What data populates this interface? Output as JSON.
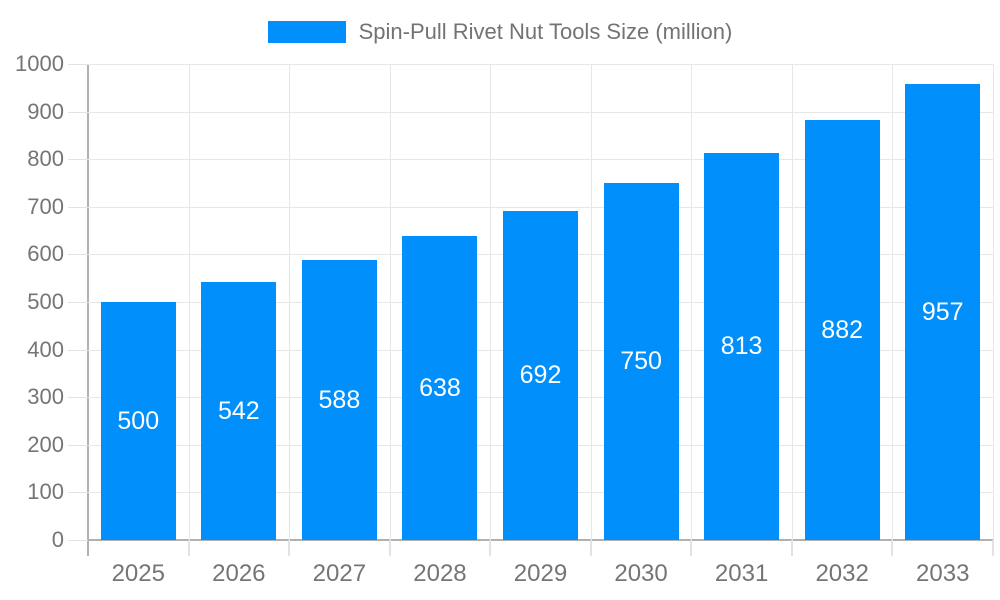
{
  "legend": {
    "label": "Spin-Pull Rivet Nut Tools Size (million)",
    "swatch_color": "#008FFB"
  },
  "chart_data": {
    "type": "bar",
    "title": "Spin-Pull Rivet Nut Tools Size (million)",
    "categories": [
      "2025",
      "2026",
      "2027",
      "2028",
      "2029",
      "2030",
      "2031",
      "2032",
      "2033"
    ],
    "series": [
      {
        "name": "Spin-Pull Rivet Nut Tools Size (million)",
        "values": [
          500,
          542,
          588,
          638,
          692,
          750,
          813,
          882,
          957
        ]
      }
    ],
    "values": [
      500,
      542,
      588,
      638,
      692,
      750,
      813,
      882,
      957
    ],
    "bar_color": "#008FFB",
    "bar_label_color": "#ffffff",
    "axis_text_color": "#757575",
    "grid_color": "#e7e7e7",
    "axis_line_color": "#b1b1b1",
    "xlabel": "",
    "ylabel": "",
    "ylim": [
      0,
      1000
    ],
    "ytick_step": 100,
    "yticks": [
      0,
      100,
      200,
      300,
      400,
      500,
      600,
      700,
      800,
      900,
      1000
    ],
    "grid": true,
    "legend_position": "top"
  }
}
